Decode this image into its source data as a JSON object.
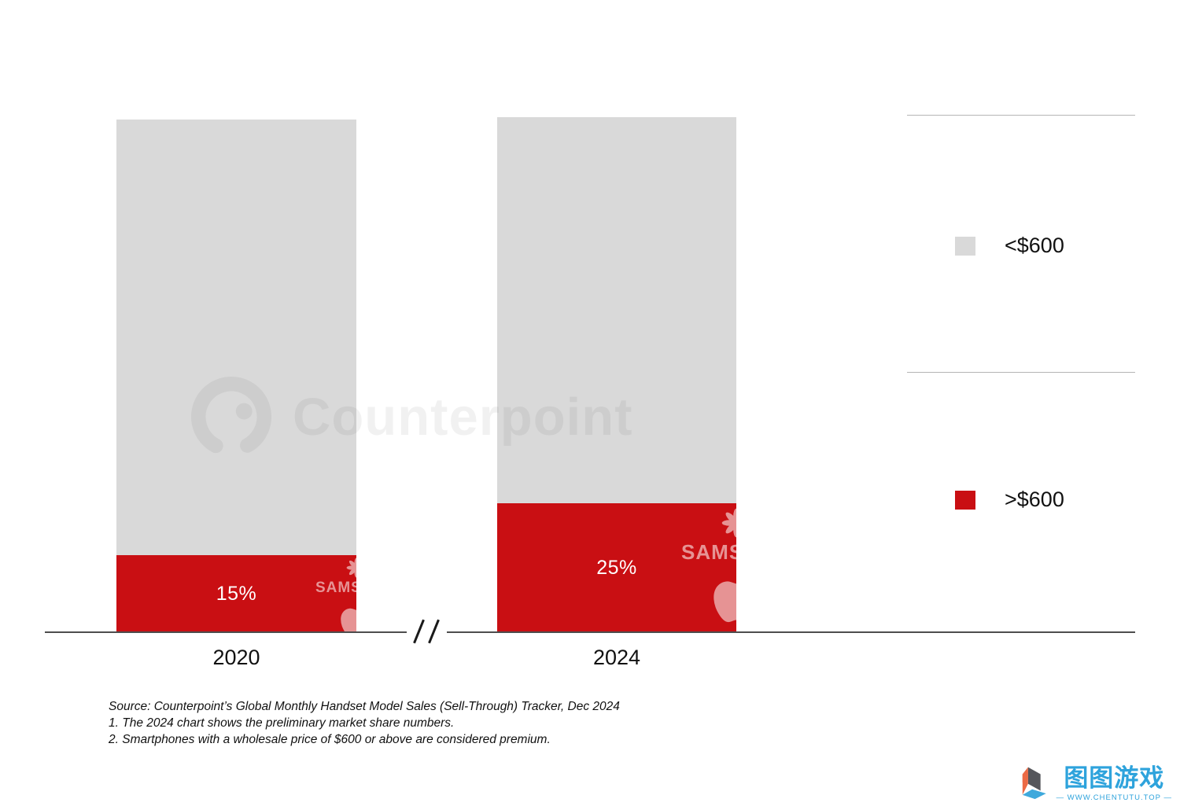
{
  "chart_data": {
    "type": "bar",
    "stacked": true,
    "categories": [
      "2020",
      "2024"
    ],
    "series": [
      {
        "name": "<$600",
        "color": "#d9d9d9",
        "values": [
          85,
          75
        ]
      },
      {
        "name": ">$600",
        "color": "#c90f13",
        "values": [
          15,
          25
        ]
      }
    ],
    "bar_value_labels": [
      "15%",
      "25%"
    ],
    "ylim": [
      0,
      100
    ],
    "grid": false,
    "legend_position": "right",
    "x_axis_break": "/ /",
    "title": ""
  },
  "legend": {
    "items": [
      {
        "label": "<$600",
        "swatch_color": "#d9d9d9"
      },
      {
        "label": ">$600",
        "swatch_color": "#c90f13"
      }
    ]
  },
  "footnotes": {
    "source": "Source: Counterpoint’s Global Monthly Handset Model Sales (Sell-Through) Tracker, Dec 2024",
    "note1": "1. The 2024 chart shows the preliminary market share numbers.",
    "note2": "2. Smartphones with a wholesale price of $600 or above are considered premium."
  },
  "watermarks": {
    "counterpoint_text": "Counterpoint",
    "brand_text": "SAMSUNG"
  },
  "site_badge": {
    "name": "图图游戏",
    "url_display": "— WWW.CHENTUTU.TOP —",
    "text_color": "#2ea3dc",
    "cube_orange": "#ec6a45",
    "cube_gray": "#55565b",
    "cube_blue": "#3fa9dc"
  },
  "colors": {
    "axis": "#4d4d4d",
    "legend_divider": "#b5b5b5",
    "bar_gray": "#d9d9d9",
    "bar_red": "#c90f13",
    "background": "#ffffff"
  }
}
